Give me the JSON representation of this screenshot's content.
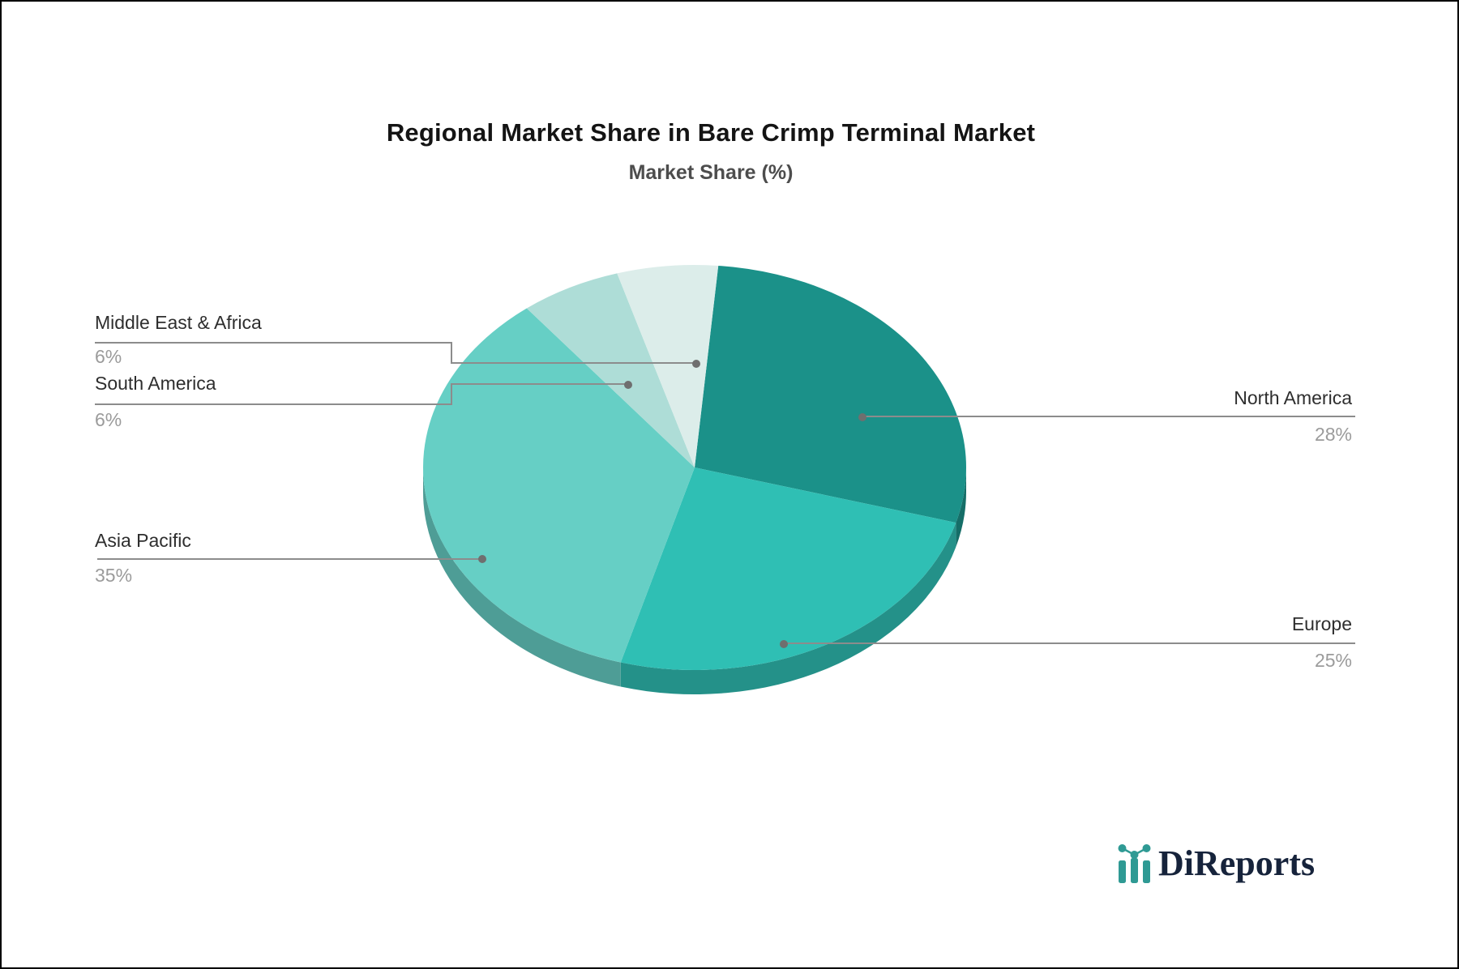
{
  "title": "Regional Market Share in Bare Crimp Terminal Market",
  "subtitle": "Market Share (%)",
  "chart_data": {
    "type": "pie",
    "title": "Regional Market Share in Bare Crimp Terminal Market",
    "subtitle": "Market Share (%)",
    "unit": "%",
    "style": "3d-pie",
    "start_angle_deg": 5,
    "direction": "clockwise",
    "slices": [
      {
        "label": "North America",
        "value": 28,
        "display": "28%",
        "color": "#1b9189"
      },
      {
        "label": "Europe",
        "value": 25,
        "display": "25%",
        "color": "#2fbfb4"
      },
      {
        "label": "Asia Pacific",
        "value": 35,
        "display": "35%",
        "color": "#66cfc5"
      },
      {
        "label": "South America",
        "value": 6,
        "display": "6%",
        "color": "#aeddd7"
      },
      {
        "label": "Middle East & Africa",
        "value": 6,
        "display": "6%",
        "color": "#dcedea"
      }
    ],
    "legend": "none",
    "labels_position": "outside-with-leader-lines"
  },
  "colors": {
    "background": "#ffffff",
    "leader_line": "#8c8c8c",
    "leader_dot": "#6f6f6f",
    "label_text": "#2e2e2e",
    "value_text": "#9b9b9b",
    "title_text": "#141414",
    "subtitle_text": "#4d4d4d",
    "logo_icon": "#2f9a94",
    "logo_text_color": "#16233b"
  },
  "branding": {
    "logo_text": "DiReports"
  }
}
